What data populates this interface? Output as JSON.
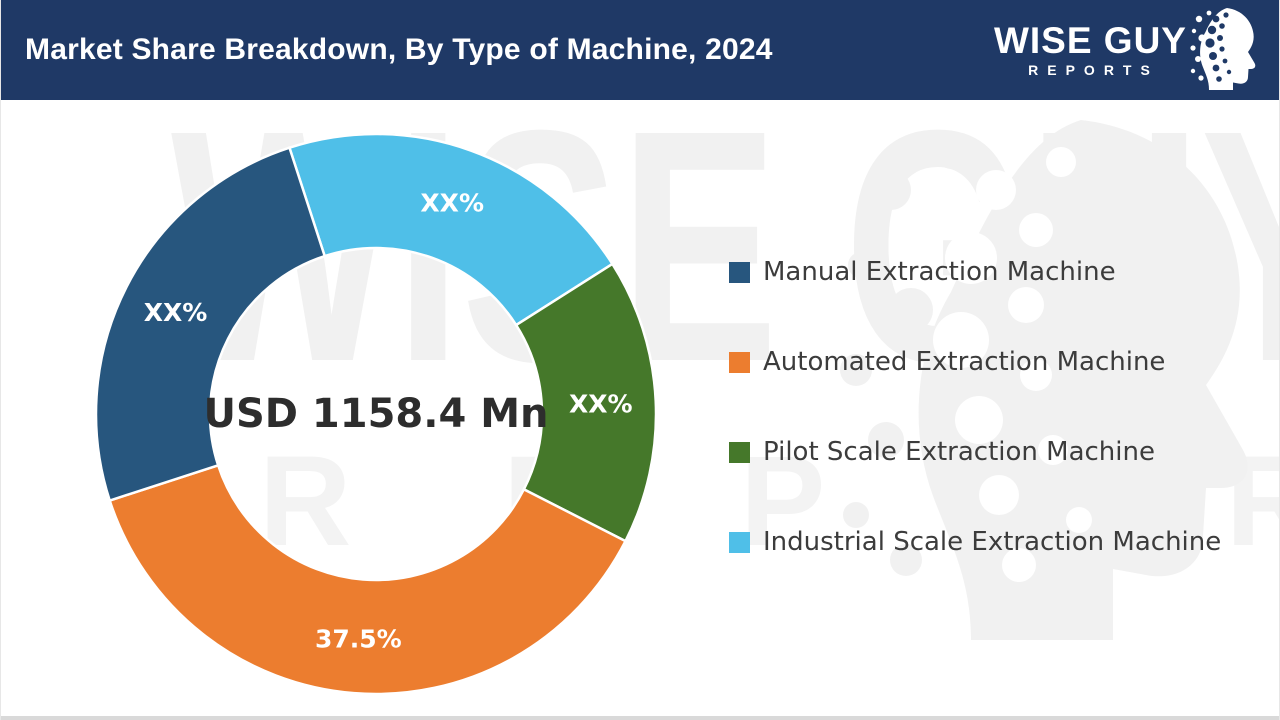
{
  "header": {
    "title": "Market Share Breakdown, By Type of Machine, 2024",
    "logo": {
      "line1": "WISE GUY",
      "line2": "REPORTS"
    }
  },
  "watermark": {
    "line1": "WISE GUY",
    "line2": "R E P O R T S"
  },
  "colors": {
    "header_bg": "#1F3966",
    "manual_blue": "#27567E",
    "automated_orange": "#EC7D2F",
    "pilot_green": "#45782A",
    "industrial_lightblue": "#4FBFE8"
  },
  "chart_data": {
    "type": "pie",
    "subtype": "donut",
    "title": "Market Share Breakdown, By Type of Machine, 2024",
    "center_label": "USD 1158.4 Mn",
    "start_angle_deg": -18,
    "donut": {
      "outer_radius": 280,
      "inner_radius": 166,
      "label_radius": 225
    },
    "legend_position": "right",
    "segments": [
      {
        "name": "Industrial Scale Extraction Machine",
        "pct": 21.0,
        "label": "XX%",
        "color": "#4FBFE8"
      },
      {
        "name": "Pilot Scale Extraction Machine",
        "pct": 16.5,
        "label": "XX%",
        "color": "#45782A"
      },
      {
        "name": "Automated Extraction Machine",
        "pct": 37.5,
        "label": "37.5%",
        "color": "#EC7D2F"
      },
      {
        "name": "Manual Extraction Machine",
        "pct": 25.0,
        "label": "XX%",
        "color": "#27567E"
      }
    ]
  },
  "legend": {
    "items": [
      {
        "label": "Manual Extraction Machine",
        "color": "#27567E"
      },
      {
        "label": "Automated Extraction Machine",
        "color": "#EC7D2F"
      },
      {
        "label": "Pilot Scale Extraction Machine",
        "color": "#45782A"
      },
      {
        "label": "Industrial Scale Extraction Machine",
        "color": "#4FBFE8"
      }
    ]
  }
}
